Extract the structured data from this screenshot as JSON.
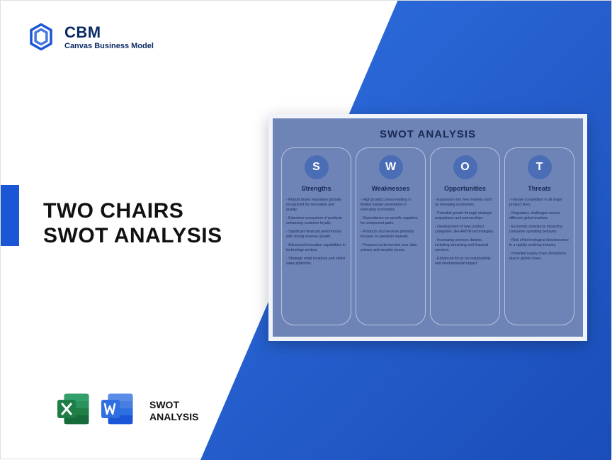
{
  "brand": {
    "name": "CBM",
    "tagline": "Canvas Business Model",
    "logo_color": "#1a56d6"
  },
  "title_line1": "TWO CHAIRS",
  "title_line2": "SWOT ANALYSIS",
  "file_label_line1": "SWOT",
  "file_label_line2": "ANALYSIS",
  "excel_color": "#1e7e46",
  "word_color": "#2f6fe0",
  "diagonal_gradient_from": "#2f6fe0",
  "diagonal_gradient_to": "#1a4db8",
  "accent_bar_color": "#1a56d6",
  "swot": {
    "title": "SWOT ANALYSIS",
    "card_bg": "#6f84b6",
    "circle_bg": "#4a6db5",
    "border_color": "#b8c3dd",
    "text_color": "#1a2a55",
    "columns": [
      {
        "letter": "S",
        "label": "Strengths",
        "items": [
          "Robust brand reputation globally recognized for innovation and quality.",
          "Extensive ecosystem of products enhancing customer loyalty.",
          "Significant financial performance with strong revenue growth.",
          "Advanced innovation capabilities in technology sectors.",
          "Strategic retail locations and online sales platforms."
        ]
      },
      {
        "letter": "W",
        "label": "Weaknesses",
        "items": [
          "High product prices leading to limited market penetration in emerging economies.",
          "Dependence on specific suppliers for component parts.",
          "Products and services primarily focused on premium markets.",
          "Frequent controversies over data privacy and security issues."
        ]
      },
      {
        "letter": "O",
        "label": "Opportunities",
        "items": [
          "Expansion into new markets such as emerging economies.",
          "Potential growth through strategic acquisitions and partnerships.",
          "Development of new product categories, like AR/VR technologies.",
          "Increasing services division, including streaming and financial services.",
          "Enhanced focus on sustainability and environmental impact."
        ]
      },
      {
        "letter": "T",
        "label": "Threats",
        "items": [
          "Intense competition in all major product lines.",
          "Regulatory challenges across different global markets.",
          "Economic downturns impacting consumer spending behavior.",
          "Risk of technological obsolescence in a rapidly evolving industry.",
          "Potential supply chain disruptions due to global crises."
        ]
      }
    ]
  }
}
